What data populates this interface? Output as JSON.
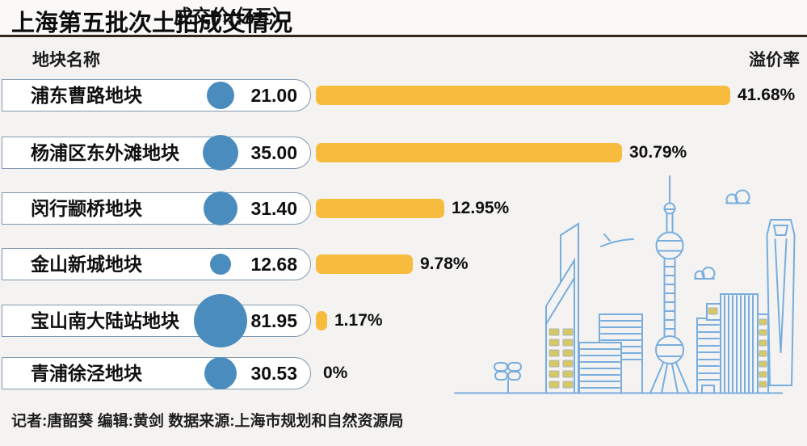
{
  "title": "上海第五批次土拍成交情况",
  "columns": {
    "name": "地块名称",
    "price": "成交价(亿元）",
    "premium": "溢价率"
  },
  "chart_data": {
    "type": "bar",
    "title": "上海第五批次土拍成交情况",
    "categories": [
      "浦东曹路地块",
      "杨浦区东外滩地块",
      "闵行颛桥地块",
      "金山新城地块",
      "宝山南大陆站地块",
      "青浦徐泾地块"
    ],
    "series": [
      {
        "name": "成交价(亿元)",
        "encoding": "circle-size",
        "values": [
          21.0,
          35.0,
          31.4,
          12.68,
          81.95,
          30.53
        ],
        "display": [
          "21.00",
          "35.00",
          "31.40",
          "12.68",
          "81.95",
          "30.53"
        ]
      },
      {
        "name": "溢价率",
        "encoding": "bar-length",
        "values": [
          41.68,
          30.79,
          12.95,
          9.78,
          1.17,
          0
        ],
        "display": [
          "41.68%",
          "30.79%",
          "12.95%",
          "9.78%",
          "1.17%",
          "0%"
        ]
      }
    ],
    "legend_position": "none",
    "grid": false,
    "bar_color": "#F7BC3E",
    "circle_color": "#4B8CBE"
  },
  "footer": {
    "credits": "记者:唐韶葵  编辑:黄剑 数据来源:上海市规划和自然资源局"
  },
  "illustration": {
    "name": "shanghai-skyline",
    "stroke_color": "#78ADDE",
    "window_fill": "#D7C864"
  }
}
